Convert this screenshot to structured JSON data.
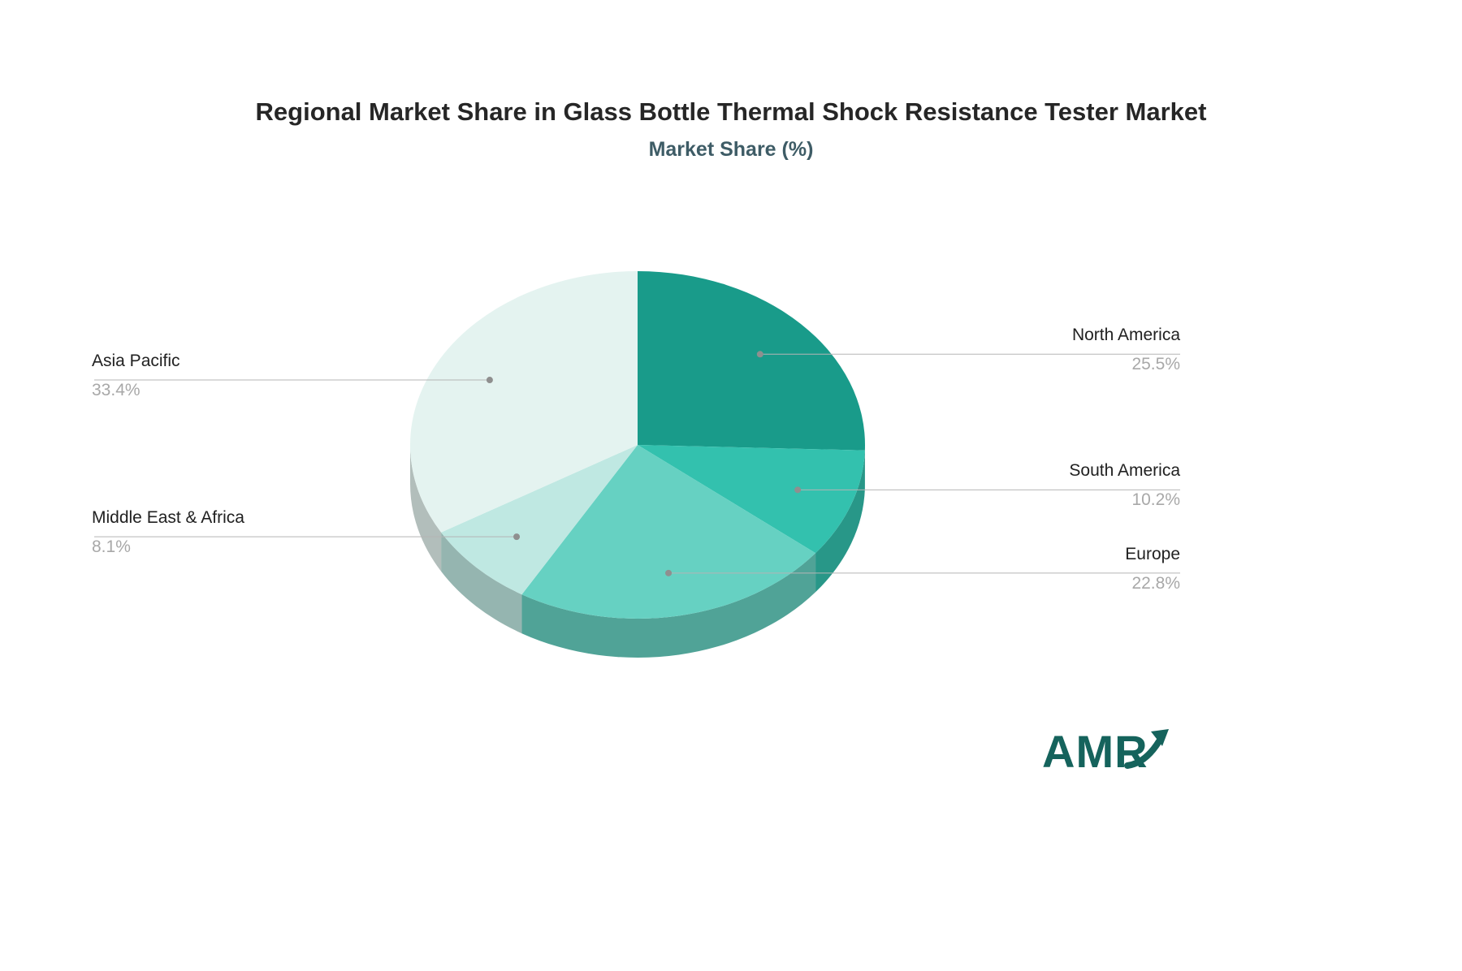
{
  "header": {
    "title": "Regional Market Share in Glass Bottle Thermal Shock Resistance Tester Market",
    "subtitle": "Market Share (%)"
  },
  "chart_data": {
    "type": "pie",
    "title": "Regional Market Share in Glass Bottle Thermal Shock Resistance Tester Market",
    "subtitle": "Market Share (%)",
    "unit": "%",
    "style": "3d",
    "start_angle": "top",
    "direction": "clockwise",
    "legend_position": "none",
    "labels": [
      "North America",
      "South America",
      "Europe",
      "Middle East & Africa",
      "Asia Pacific"
    ],
    "values": [
      25.5,
      10.2,
      22.8,
      8.1,
      33.4
    ],
    "value_labels": [
      "25.5%",
      "10.2%",
      "22.8%",
      "8.1%",
      "33.4%"
    ],
    "colors": [
      "#199b8a",
      "#33c1ae",
      "#66d1c2",
      "#bfe8e2",
      "#e4f3f0"
    ],
    "label_sides": [
      "right",
      "right",
      "right",
      "left",
      "left"
    ],
    "leader_line_color": "#b5b5b5",
    "leader_dot_color": "#8f8f8f"
  },
  "logo": {
    "text": "AMR",
    "color": "#15635c"
  }
}
